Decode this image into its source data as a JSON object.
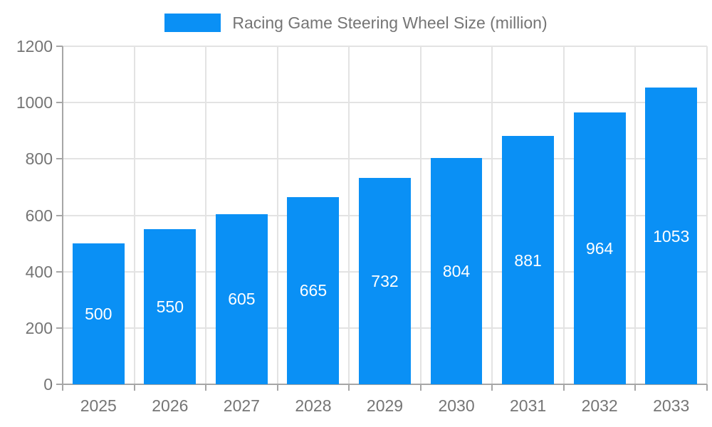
{
  "chart_data": {
    "type": "bar",
    "title": "Racing Game Steering Wheel Size (million)",
    "categories": [
      "2025",
      "2026",
      "2027",
      "2028",
      "2029",
      "2030",
      "2031",
      "2032",
      "2033"
    ],
    "values": [
      500,
      550,
      605,
      665,
      732,
      804,
      881,
      964,
      1053
    ],
    "xlabel": "",
    "ylabel": "",
    "ylim": [
      0,
      1200
    ],
    "yticks": [
      0,
      200,
      400,
      600,
      800,
      1000,
      1200
    ],
    "grid": true,
    "legend_position": "top-center",
    "value_label_position": "inside-center",
    "colors": {
      "bar": "#0A90F5",
      "grid": "#e3e3e3",
      "axis": "#a6a6a6",
      "text": "#757575",
      "value_text": "#ffffff",
      "background": "#ffffff"
    }
  }
}
